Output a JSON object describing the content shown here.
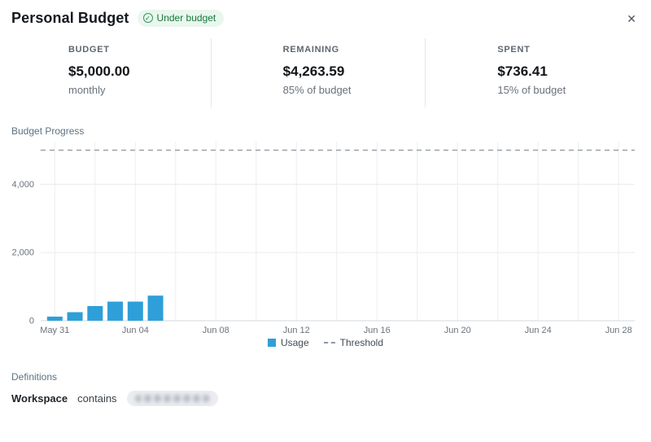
{
  "header": {
    "title": "Personal Budget",
    "status_badge": {
      "label": "Under budget"
    },
    "icons": {
      "status_check": "✓",
      "close": "✕"
    }
  },
  "stats": {
    "columns": [
      {
        "label": "BUDGET",
        "value": "$5,000.00",
        "sub": "monthly"
      },
      {
        "label": "REMAINING",
        "value": "$4,263.59",
        "sub": "85% of budget"
      },
      {
        "label": "SPENT",
        "value": "$736.41",
        "sub": "15% of budget"
      }
    ]
  },
  "chart_section": {
    "title": "Budget Progress"
  },
  "chart_data": {
    "type": "bar",
    "title": "Budget Progress",
    "x": [
      "May 31",
      "Jun 01",
      "Jun 02",
      "Jun 03",
      "Jun 04",
      "Jun 05"
    ],
    "values": [
      120,
      250,
      430,
      560,
      560,
      736
    ],
    "threshold": 5000,
    "ylim": [
      0,
      5250
    ],
    "y_ticks": [
      0,
      2000,
      4000
    ],
    "y_tick_labels": [
      "0",
      "2,000",
      "4,000"
    ],
    "x_tick_days": [
      0,
      4,
      8,
      12,
      16,
      20,
      24,
      28
    ],
    "x_tick_labels": [
      "May 31",
      "Jun 04",
      "Jun 08",
      "Jun 12",
      "Jun 16",
      "Jun 20",
      "Jun 24",
      "Jun 28"
    ],
    "grid": true,
    "bar_color": "#2e9fd9",
    "threshold_color": "#98a1aa",
    "legend": [
      {
        "label": "Usage",
        "type": "bar",
        "color": "#2e9fd9"
      },
      {
        "label": "Threshold",
        "type": "dashed-line",
        "color": "#8f99a2"
      }
    ],
    "legend_position": "bottom-center"
  },
  "definitions": {
    "title": "Definitions",
    "rows": [
      {
        "field": "Workspace",
        "operator": "contains",
        "value_redacted": true
      }
    ]
  }
}
